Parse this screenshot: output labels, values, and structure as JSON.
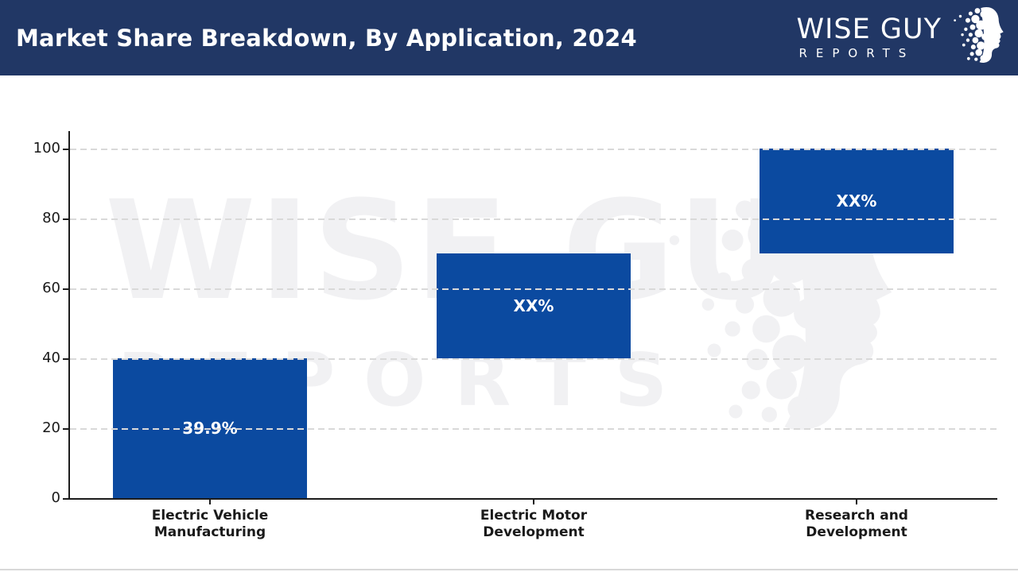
{
  "header": {
    "title": "Market Share Breakdown, By Application, 2024",
    "brand": {
      "line1": "WISE GUY",
      "line2": "REPORTS"
    }
  },
  "watermark": {
    "line1": "WISE GUY",
    "line2": "REPORTS"
  },
  "colors": {
    "header_bg": "#213765",
    "bar_blue": "#0b4aa0",
    "grid_gray": "#d9d9d9",
    "watermark_gray": "#f1f1f3"
  },
  "chart_data": {
    "type": "bar",
    "subtype": "floating-segment",
    "title": "Market Share Breakdown, By Application, 2024",
    "categories": [
      "Electric Vehicle\nManufacturing",
      "Electric Motor\nDevelopment",
      "Research and\nDevelopment"
    ],
    "bars": [
      {
        "category": "Electric Vehicle Manufacturing",
        "start": 0,
        "end": 39.9,
        "label": "39.9%"
      },
      {
        "category": "Electric Motor Development",
        "start": 40,
        "end": 70,
        "label": "XX%"
      },
      {
        "category": "Research and Development",
        "start": 70,
        "end": 100,
        "label": "XX%"
      }
    ],
    "yticks": [
      0,
      20,
      40,
      60,
      80,
      100
    ],
    "ylim": [
      0,
      105
    ],
    "xlabel": "",
    "ylabel": "",
    "grid": "horizontal-dashed",
    "legend": false,
    "bar_color": "#0b4aa0",
    "value_label_color": "#ffffff"
  }
}
